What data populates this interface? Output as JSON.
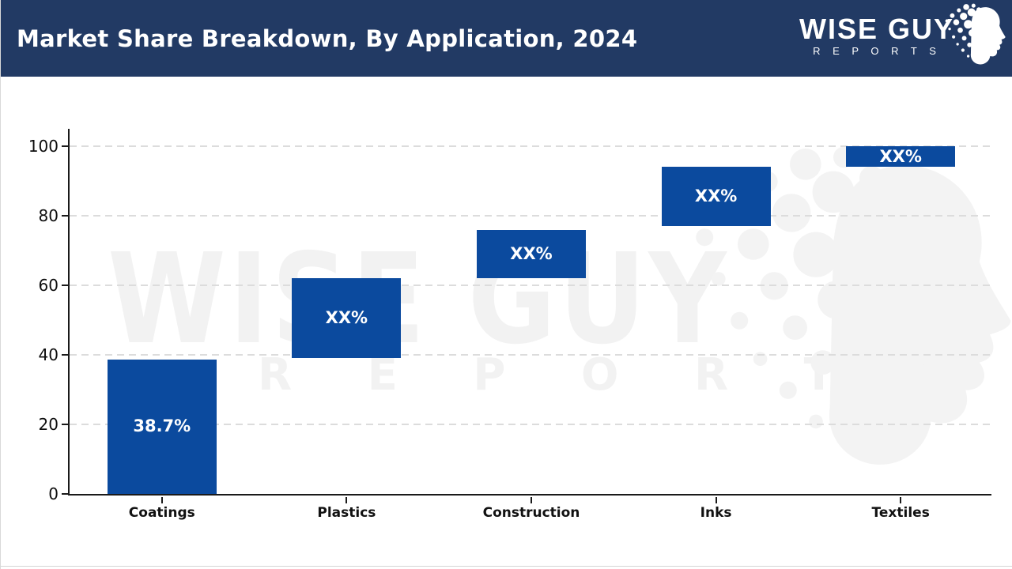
{
  "header": {
    "title": "Market Share Breakdown, By Application, 2024",
    "logo": {
      "line1": "WISE GUY",
      "line2": "R E P O R T S"
    }
  },
  "watermark": {
    "line1": "WISE GUY",
    "line2": "R E P O R T S"
  },
  "colors": {
    "header_bg": "#223a64",
    "bar": "#0b4a9e",
    "grid": "#dcdcdc",
    "axis": "#1a1a1a",
    "watermark": "#f2f2f2"
  },
  "chart_data": {
    "type": "bar",
    "subtype": "waterfall-floating-bars",
    "title": "Market Share Breakdown, By Application, 2024",
    "xlabel": "",
    "ylabel": "",
    "categories": [
      "Coatings",
      "Plastics",
      "Construction",
      "Inks",
      "Textiles"
    ],
    "segments": [
      {
        "category": "Coatings",
        "start": 0,
        "end": 38.7,
        "label": "38.7%"
      },
      {
        "category": "Plastics",
        "start": 39,
        "end": 62,
        "label": "XX%"
      },
      {
        "category": "Construction",
        "start": 62,
        "end": 76,
        "label": "XX%"
      },
      {
        "category": "Inks",
        "start": 77,
        "end": 94,
        "label": "XX%"
      },
      {
        "category": "Textiles",
        "start": 94,
        "end": 100,
        "label": "XX%"
      }
    ],
    "y_ticks": [
      0,
      20,
      40,
      60,
      80,
      100
    ],
    "ylim": [
      0,
      105
    ],
    "grid": "horizontal dashed",
    "legend": "none"
  }
}
